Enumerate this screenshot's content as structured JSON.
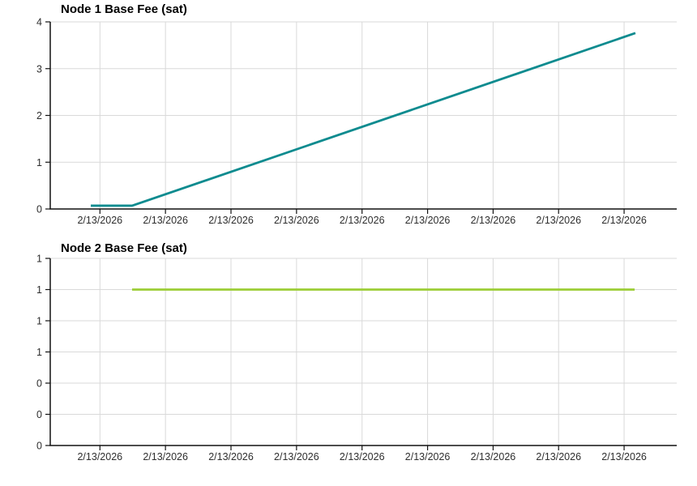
{
  "page": {
    "background": "#ffffff"
  },
  "styles": {
    "grid_color": "#d9d9d9",
    "axis_color": "#111111",
    "tick_color": "#111111",
    "tick_label_color": "#2e2e2e",
    "title_color": "#000000",
    "node1_line_color": "#0d8b8f",
    "node2_line_color": "#9ccd35"
  },
  "chart_data": [
    {
      "type": "line",
      "title": "Node 1 Base Fee (sat)",
      "xlabel": "",
      "ylabel": "",
      "ylim": [
        0,
        4
      ],
      "grid": true,
      "legend": "none",
      "y_ticks": [
        {
          "value": 0,
          "label": "0"
        },
        {
          "value": 1,
          "label": "1"
        },
        {
          "value": 2,
          "label": "2"
        },
        {
          "value": 3,
          "label": "3"
        },
        {
          "value": 4,
          "label": "4"
        }
      ],
      "x_ticks": [
        {
          "pos": 0.0793,
          "label": "2/13/2026"
        },
        {
          "pos": 0.1839,
          "label": "2/13/2026"
        },
        {
          "pos": 0.2885,
          "label": "2/13/2026"
        },
        {
          "pos": 0.3931,
          "label": "2/13/2026"
        },
        {
          "pos": 0.4977,
          "label": "2/13/2026"
        },
        {
          "pos": 0.6023,
          "label": "2/13/2026"
        },
        {
          "pos": 0.7069,
          "label": "2/13/2026"
        },
        {
          "pos": 0.8114,
          "label": "2/13/2026"
        },
        {
          "pos": 0.916,
          "label": "2/13/2026"
        }
      ],
      "series": [
        {
          "name": "Node 1 Base Fee (sat)",
          "color": "#0d8b8f",
          "points": [
            {
              "x": 0.0647,
              "y": 0.07
            },
            {
              "x": 0.1306,
              "y": 0.07
            },
            {
              "x": 0.934,
              "y": 3.76
            }
          ]
        }
      ]
    },
    {
      "type": "line",
      "title": "Node 2 Base Fee (sat)",
      "xlabel": "",
      "ylabel": "",
      "ylim": [
        0,
        1.2
      ],
      "grid": true,
      "legend": "none",
      "y_ticks": [
        {
          "value": 0.0,
          "label": "0"
        },
        {
          "value": 0.2,
          "label": "0"
        },
        {
          "value": 0.4,
          "label": "0"
        },
        {
          "value": 0.6,
          "label": "1"
        },
        {
          "value": 0.8,
          "label": "1"
        },
        {
          "value": 1.0,
          "label": "1"
        },
        {
          "value": 1.2,
          "label": "1"
        }
      ],
      "x_ticks": [
        {
          "pos": 0.0793,
          "label": "2/13/2026"
        },
        {
          "pos": 0.1839,
          "label": "2/13/2026"
        },
        {
          "pos": 0.2885,
          "label": "2/13/2026"
        },
        {
          "pos": 0.3931,
          "label": "2/13/2026"
        },
        {
          "pos": 0.4977,
          "label": "2/13/2026"
        },
        {
          "pos": 0.6023,
          "label": "2/13/2026"
        },
        {
          "pos": 0.7069,
          "label": "2/13/2026"
        },
        {
          "pos": 0.8114,
          "label": "2/13/2026"
        },
        {
          "pos": 0.916,
          "label": "2/13/2026"
        }
      ],
      "series": [
        {
          "name": "Node 2 Base Fee (sat)",
          "color": "#9ccd35",
          "points": [
            {
              "x": 0.1306,
              "y": 1.0
            },
            {
              "x": 0.9328,
              "y": 1.0
            }
          ]
        }
      ]
    }
  ]
}
